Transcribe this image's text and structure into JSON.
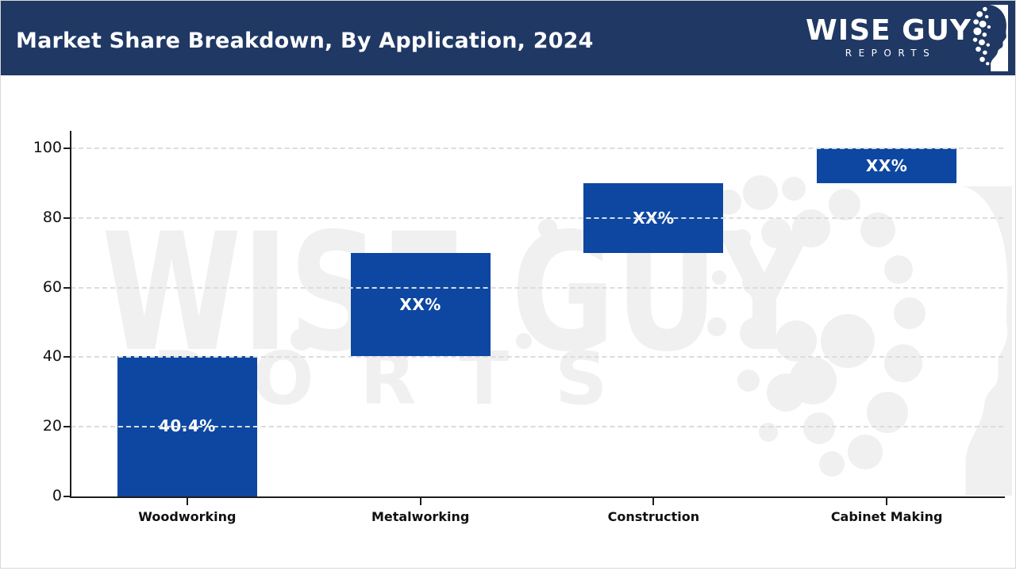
{
  "header": {
    "title": "Market Share Breakdown, By Application, 2024",
    "logo": {
      "line1": "WISE GUY",
      "line2": "REPORTS"
    }
  },
  "watermark": {
    "line1": "WISE GUY",
    "line2": "PORTS"
  },
  "chart_data": {
    "type": "bar",
    "subtype": "waterfall",
    "title": "Market Share Breakdown, By Application, 2024",
    "categories": [
      "Woodworking",
      "Metalworking",
      "Construction",
      "Cabinet Making"
    ],
    "bars": [
      {
        "category": "Woodworking",
        "start": 0,
        "end": 40.4,
        "label": "40.4%"
      },
      {
        "category": "Metalworking",
        "start": 40.4,
        "end": 70,
        "label": "XX%"
      },
      {
        "category": "Construction",
        "start": 70,
        "end": 90,
        "label": "XX%"
      },
      {
        "category": "Cabinet Making",
        "start": 90,
        "end": 100,
        "label": "XX%"
      }
    ],
    "yticks": [
      0,
      20,
      40,
      60,
      80,
      100
    ],
    "ylim": [
      0,
      105
    ],
    "xlabel": "",
    "ylabel": "",
    "legend": "none",
    "grid": {
      "axis": "y",
      "style": "dashed"
    }
  },
  "colors": {
    "header_bg": "#1f3864",
    "bar": "#0d47a1",
    "value_label": "#ffffff",
    "grid": "#dcdcdc",
    "axis": "#1d1d1d",
    "watermark": "#f0f0f0"
  }
}
